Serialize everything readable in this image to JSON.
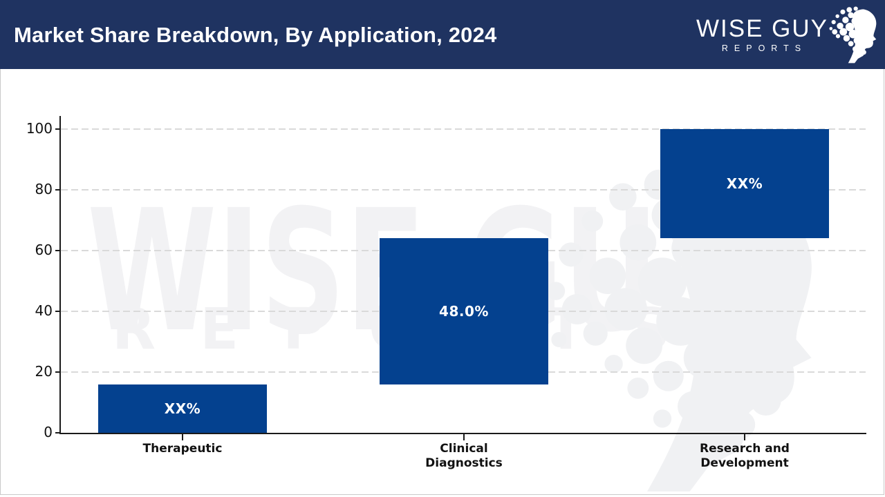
{
  "header": {
    "title": "Market Share Breakdown, By Application, 2024",
    "logo": {
      "line1": "WISE GUY",
      "line2": "REPORTS"
    }
  },
  "watermark": {
    "line1": "WISE GUY",
    "line2": "REPORTS"
  },
  "colors": {
    "header_bg": "#1f3361",
    "bar_blue": "#04418f",
    "grid": "#d9d9d9",
    "axis": "#1a1a1a",
    "text": "#111111",
    "value_label": "#ffffff",
    "watermark": "#f2f2f4",
    "frame_border": "#c9c9c9"
  },
  "chart_data": {
    "type": "bar",
    "subtype": "floating-waterfall",
    "title": "Market Share Breakdown, By Application, 2024",
    "categories": [
      "Therapeutic",
      "Clinical Diagnostics",
      "Research and Development"
    ],
    "category_label_lines": [
      [
        "Therapeutic"
      ],
      [
        "Clinical",
        "Diagnostics"
      ],
      [
        "Research and",
        "Development"
      ]
    ],
    "bars": [
      {
        "category": "Therapeutic",
        "start": 0,
        "end": 16,
        "label": "XX%"
      },
      {
        "category": "Clinical Diagnostics",
        "start": 16,
        "end": 64,
        "label": "48.0%"
      },
      {
        "category": "Research and Development",
        "start": 64,
        "end": 100,
        "label": "XX%"
      }
    ],
    "yticks": [
      0,
      20,
      40,
      60,
      80,
      100
    ],
    "ylim": [
      0,
      105
    ],
    "xlabel": "",
    "ylabel": "",
    "grid": "dashed-horizontal",
    "legend": "none",
    "bar_color": "#04418f"
  }
}
